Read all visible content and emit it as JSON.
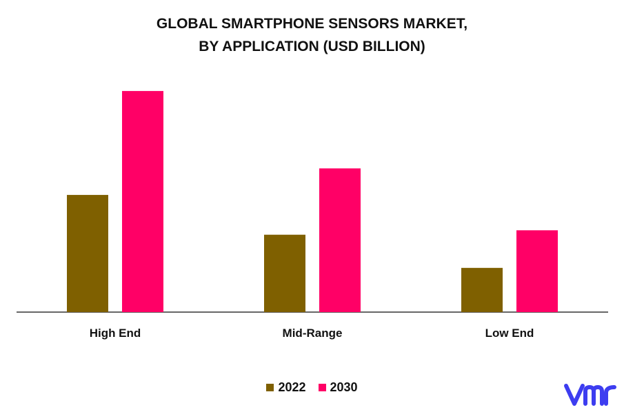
{
  "chart_data": {
    "type": "bar",
    "title_line1": "GLOBAL SMARTPHONE SENSORS MARKET,",
    "title_line2": "BY APPLICATION (USD BILLION)",
    "categories": [
      "High End",
      "Mid-Range",
      "Low End"
    ],
    "series": [
      {
        "name": "2022",
        "color": "#7f6000",
        "values": [
          5.3,
          3.5,
          2.0
        ]
      },
      {
        "name": "2030",
        "color": "#ff0066",
        "values": [
          10.0,
          6.5,
          3.7
        ]
      }
    ],
    "ylim": [
      0,
      11
    ],
    "xlabel": "",
    "ylabel": "",
    "legend": "bottom-center",
    "grid": false
  },
  "brand": {
    "logo_name": "vmr",
    "color": "#3d3df0"
  }
}
